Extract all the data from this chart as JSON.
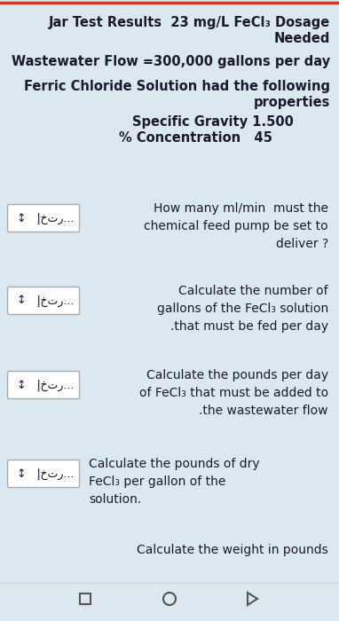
{
  "bg_color": "#dce8f0",
  "title_line1": "Jar Test Results  23 mg/L FeCl₃ Dosage",
  "title_line2": "Needed",
  "line2": "Wastewater Flow =300,000 gallons per day",
  "line3a": "Ferric Chloride Solution had the following",
  "line3b": "properties",
  "line4": "Specific Gravity 1.500",
  "line5": "% Concentration   45",
  "q1_text": "How many ml/min  must the\nchemical feed pump be set to\ndeliver ?",
  "q2_text": "Calculate the number of\ngallons of the FeCl₃ solution\n.that must be fed per day",
  "q3_text": "Calculate the pounds per day\nof FeCl₃ that must be added to\n.the wastewater flow",
  "q4_text": "Calculate the pounds of dry\nFeCl₃ per gallon of the\nsolution.",
  "q5_text": "Calculate the weight in pounds",
  "box_label_arrow": "↕",
  "box_label_text": "‫إختر...‬",
  "text_color": "#1a1a2e",
  "box_bg": "#ffffff",
  "box_border": "#aaaaaa",
  "top_border_color": "#cc3333",
  "nav_icon_color": "#555555"
}
